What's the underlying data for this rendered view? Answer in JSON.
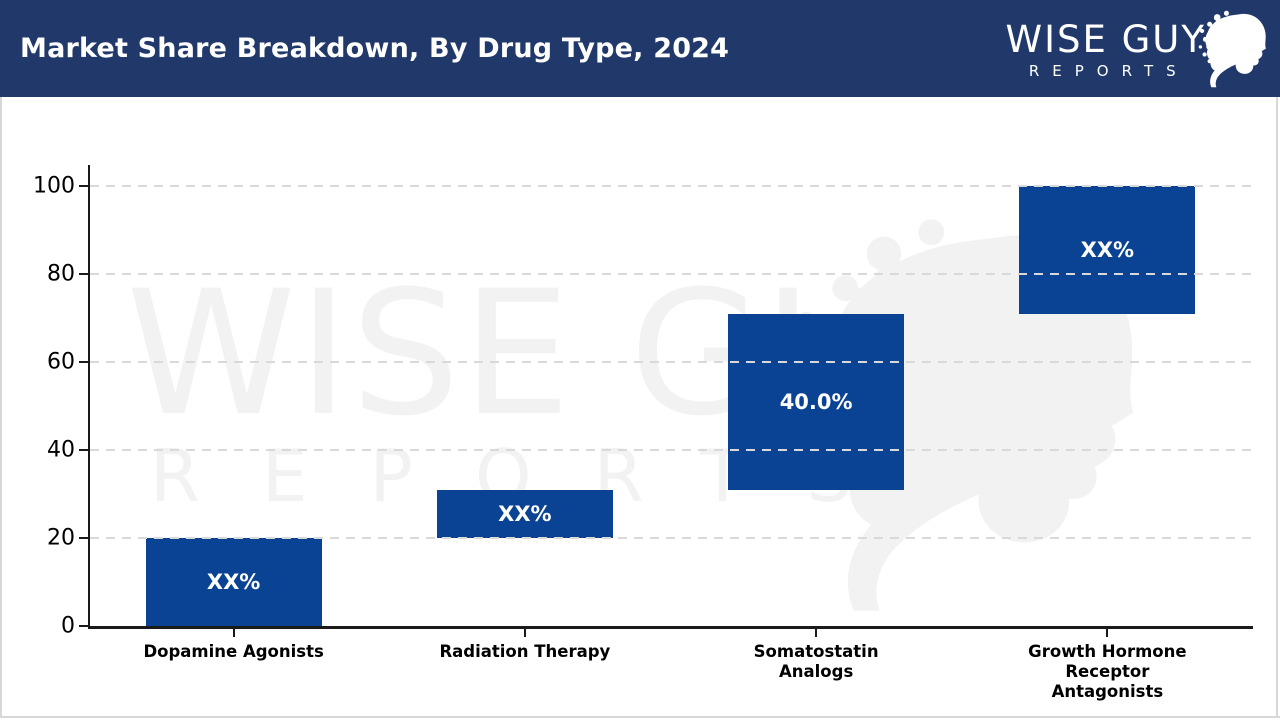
{
  "header": {
    "logo": {
      "line1": "WISE GUY",
      "line2": "REPORTS"
    }
  },
  "watermark": {
    "line1": "WISE GUY",
    "line2": "REPORTS"
  },
  "colors": {
    "header_bg": "#21396a",
    "bar": "#0a4294",
    "bar_label": "#ffffff",
    "grid": "#d9d9d9",
    "axis": "#1a1a1a",
    "watermark": "#f2f2f2"
  },
  "chart_data": {
    "type": "bar",
    "variant": "floating-segment-bars",
    "title": "Market Share Breakdown, By Drug Type, 2024",
    "xlabel": "",
    "ylabel": "",
    "ylim": [
      0,
      100
    ],
    "yticks": [
      0,
      20,
      40,
      60,
      80,
      100
    ],
    "grid": "horizontal-dashed",
    "legend": "none",
    "categories": [
      "Dopamine Agonists",
      "Radiation Therapy",
      "Somatostatin\nAnalogs",
      "Growth Hormone\nReceptor\nAntagonists"
    ],
    "bars": [
      {
        "category": "Dopamine Agonists",
        "start": 0,
        "end": 20,
        "label": "XX%"
      },
      {
        "category": "Radiation Therapy",
        "start": 20,
        "end": 31,
        "label": "XX%"
      },
      {
        "category": "Somatostatin\nAnalogs",
        "start": 31,
        "end": 71,
        "label": "40.0%"
      },
      {
        "category": "Growth Hormone\nReceptor\nAntagonists",
        "start": 71,
        "end": 100,
        "label": "XX%"
      }
    ]
  }
}
